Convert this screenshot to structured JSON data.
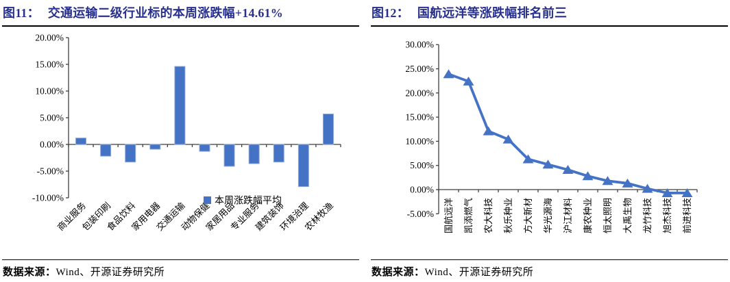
{
  "page": {
    "background": "#ffffff"
  },
  "colors": {
    "title": "#28308F",
    "series_blue": "#4472C4",
    "bar_edge": "#8FAADC",
    "axis": "#3F3F3F",
    "text": "#000000"
  },
  "figures": [
    {
      "title_prefix": "图11：",
      "title_text": "交通运输二级行业标的本周涨跌幅+14.61%",
      "source_label": "数据来源：",
      "source_text": "Wind、开源证券研究所"
    },
    {
      "title_prefix": "图12：",
      "title_text": "国航远洋等涨跌幅排名前三",
      "source_label": "数据来源：",
      "source_text": "Wind、开源证券研究所"
    }
  ],
  "chart_data": [
    {
      "type": "bar",
      "title": "交通运输二级行业标的本周涨跌幅+14.61%",
      "categories": [
        "商业服务",
        "包装印刷",
        "食品饮料",
        "家用电器",
        "交通运输",
        "动物保健",
        "家居用品",
        "专业服务",
        "建筑装饰",
        "环境治理",
        "农林牧渔"
      ],
      "series": [
        {
          "name": "本周涨跌幅平均",
          "values": [
            1.2,
            -2.2,
            -3.3,
            -0.9,
            14.61,
            -1.3,
            -4.1,
            -3.6,
            -3.3,
            -7.9,
            5.7
          ]
        }
      ],
      "xlabel": "",
      "ylabel": "",
      "unit": "percent",
      "ylim": [
        -10,
        20
      ],
      "ytick_step": 5,
      "ytick_format": "0.00%",
      "grid": false,
      "legend": [
        "本周涨跌幅平均"
      ],
      "legend_position": "inside-bottom-right"
    },
    {
      "type": "line",
      "title": "国航远洋等涨跌幅排名前三",
      "categories": [
        "国航远洋",
        "凯添燃气",
        "农大科技",
        "秋乐种业",
        "方大新材",
        "华光源海",
        "沪江材料",
        "康农种业",
        "恒太照明",
        "大禹生物",
        "龙竹科技",
        "旭杰科技",
        "前进科技"
      ],
      "series": [
        {
          "values": [
            23.9,
            22.4,
            12.1,
            10.4,
            6.3,
            5.2,
            4.1,
            2.8,
            1.8,
            1.3,
            0.2,
            -0.7,
            -0.7
          ]
        }
      ],
      "marker": "triangle",
      "xlabel": "",
      "ylabel": "",
      "unit": "percent",
      "ylim": [
        -5,
        30
      ],
      "ytick_step": 5,
      "ytick_format": "0.00%",
      "grid": false,
      "legend_position": "none"
    }
  ]
}
